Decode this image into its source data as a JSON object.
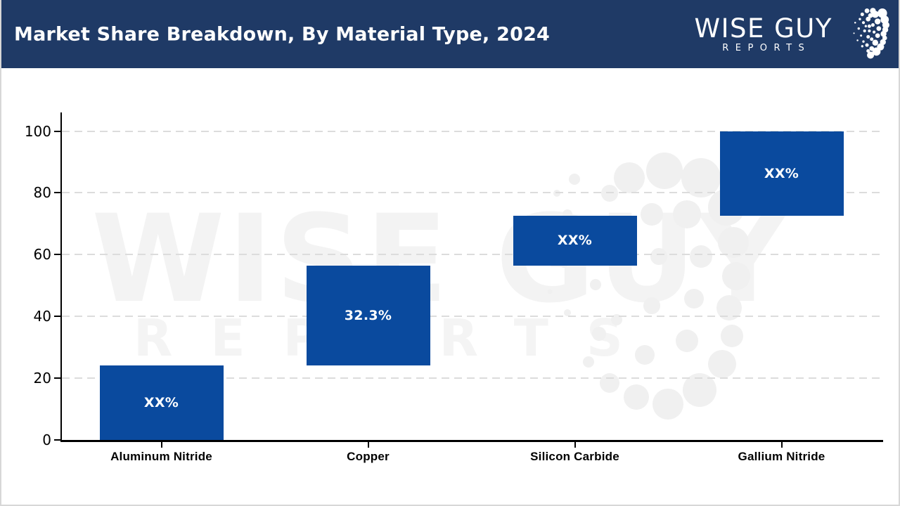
{
  "header": {
    "title": "Market Share Breakdown, By Material Type, 2024"
  },
  "logo": {
    "line1": "WISE GUY",
    "line2": "REPORTS"
  },
  "watermark": {
    "line1": "WISE GUY",
    "line2": "REPORTS"
  },
  "chart_data": {
    "type": "bar",
    "subtype": "floating_segment_waterfall",
    "title": "Market Share Breakdown, By Material Type, 2024",
    "categories": [
      "Aluminum Nitride",
      "Copper",
      "Silicon Carbide",
      "Gallium Nitride"
    ],
    "series": [
      {
        "name": "Market Share",
        "segments": [
          {
            "category": "Aluminum Nitride",
            "start": 0,
            "end": 24.2,
            "label": "XX%"
          },
          {
            "category": "Copper",
            "start": 24.2,
            "end": 56.5,
            "label": "32.3%"
          },
          {
            "category": "Silicon Carbide",
            "start": 56.5,
            "end": 72.6,
            "label": "XX%"
          },
          {
            "category": "Gallium Nitride",
            "start": 72.6,
            "end": 100,
            "label": "XX%"
          }
        ]
      }
    ],
    "xlabel": "",
    "ylabel": "",
    "ylim": [
      0,
      100
    ],
    "yticks": [
      0,
      20,
      40,
      60,
      80,
      100
    ],
    "grid": "horizontal-dashed",
    "legend": "none",
    "colors": {
      "bar": "#0a4a9e",
      "bar_label": "#ffffff",
      "axis": "#000000",
      "grid": "#dcdcdc",
      "header_bg": "#1f3a66",
      "watermark": "#f2f2f2"
    }
  }
}
